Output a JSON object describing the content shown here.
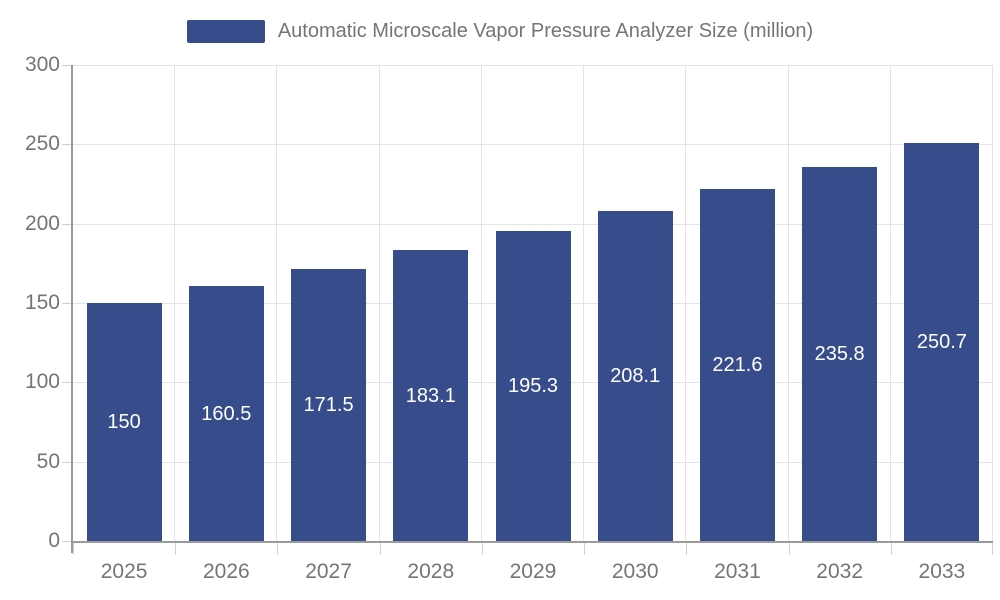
{
  "chart_data": {
    "type": "bar",
    "title": "Automatic Microscale Vapor Pressure Analyzer Size (million)",
    "legend": "Automatic Microscale Vapor Pressure Analyzer Size (million)",
    "legend_position": "top",
    "categories": [
      "2025",
      "2026",
      "2027",
      "2028",
      "2029",
      "2030",
      "2031",
      "2032",
      "2033"
    ],
    "values": [
      150,
      160.5,
      171.5,
      183.1,
      195.3,
      208.1,
      221.6,
      235.8,
      250.7
    ],
    "value_labels": [
      "150",
      "160.5",
      "171.5",
      "183.1",
      "195.3",
      "208.1",
      "221.6",
      "235.8",
      "250.7"
    ],
    "xlabel": "",
    "ylabel": "",
    "ylim": [
      0,
      300
    ],
    "yticks": [
      0,
      50,
      100,
      150,
      200,
      250,
      300
    ],
    "grid": true,
    "colors": {
      "bar": "#374c8a",
      "grid": "#e3e3e8",
      "axis": "#9a9a9a",
      "tick": "#cfcfd4",
      "tick_text": "#757575",
      "value_label": "#ffffff",
      "legend_text": "#757575",
      "background": "#ffffff"
    }
  }
}
